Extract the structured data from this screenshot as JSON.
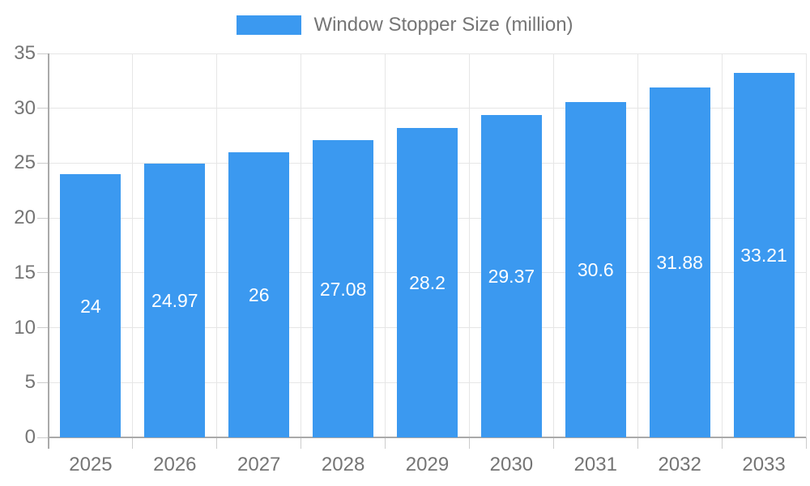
{
  "chart_data": {
    "type": "bar",
    "legend": "Window Stopper Size (million)",
    "categories": [
      "2025",
      "2026",
      "2027",
      "2028",
      "2029",
      "2030",
      "2031",
      "2032",
      "2033"
    ],
    "values": [
      24,
      24.97,
      26,
      27.08,
      28.2,
      29.37,
      30.6,
      31.88,
      33.21
    ],
    "bar_labels": [
      "24",
      "24.97",
      "26",
      "27.08",
      "28.2",
      "29.37",
      "30.6",
      "31.88",
      "33.21"
    ],
    "yticks": [
      0,
      5,
      10,
      15,
      20,
      25,
      30,
      35
    ],
    "ylim": [
      0,
      35
    ],
    "xlabel": "",
    "ylabel": "",
    "grid": true,
    "legend_position": "top",
    "colors": {
      "bar": "#3b99f0",
      "grid": "#e6e6e6",
      "axis": "#aaaaaa",
      "tick": "#cccccc",
      "text": "#757575",
      "value_text": "#ffffff",
      "background": "#ffffff"
    }
  }
}
